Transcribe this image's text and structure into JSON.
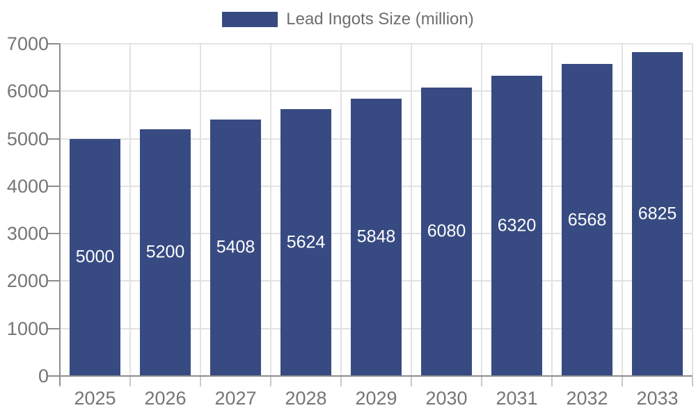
{
  "chart_data": {
    "type": "bar",
    "title": "",
    "legend": "Lead Ingots Size (million)",
    "legend_position": "top-center",
    "categories": [
      "2025",
      "2026",
      "2027",
      "2028",
      "2029",
      "2030",
      "2031",
      "2032",
      "2033"
    ],
    "values": [
      5000,
      5200,
      5408,
      5624,
      5848,
      6080,
      6320,
      6568,
      6825
    ],
    "series": [
      {
        "name": "Lead Ingots Size (million)",
        "values": [
          5000,
          5200,
          5408,
          5624,
          5848,
          6080,
          6320,
          6568,
          6825
        ]
      }
    ],
    "xlabel": "",
    "ylabel": "",
    "ylim": [
      0,
      7000
    ],
    "yticks": [
      0,
      1000,
      2000,
      3000,
      4000,
      5000,
      6000,
      7000
    ],
    "grid": true,
    "bar_value_labels_visible": true,
    "colors": {
      "bar": "#374a82",
      "bar_label": "#ffffff",
      "grid_line": "#e2e2e2",
      "axis_line": "#8c8c8c",
      "minor_tick": "#c9c9c9",
      "tick_label": "#757575",
      "legend_text": "#6e6e6e",
      "background": "#ffffff"
    }
  }
}
